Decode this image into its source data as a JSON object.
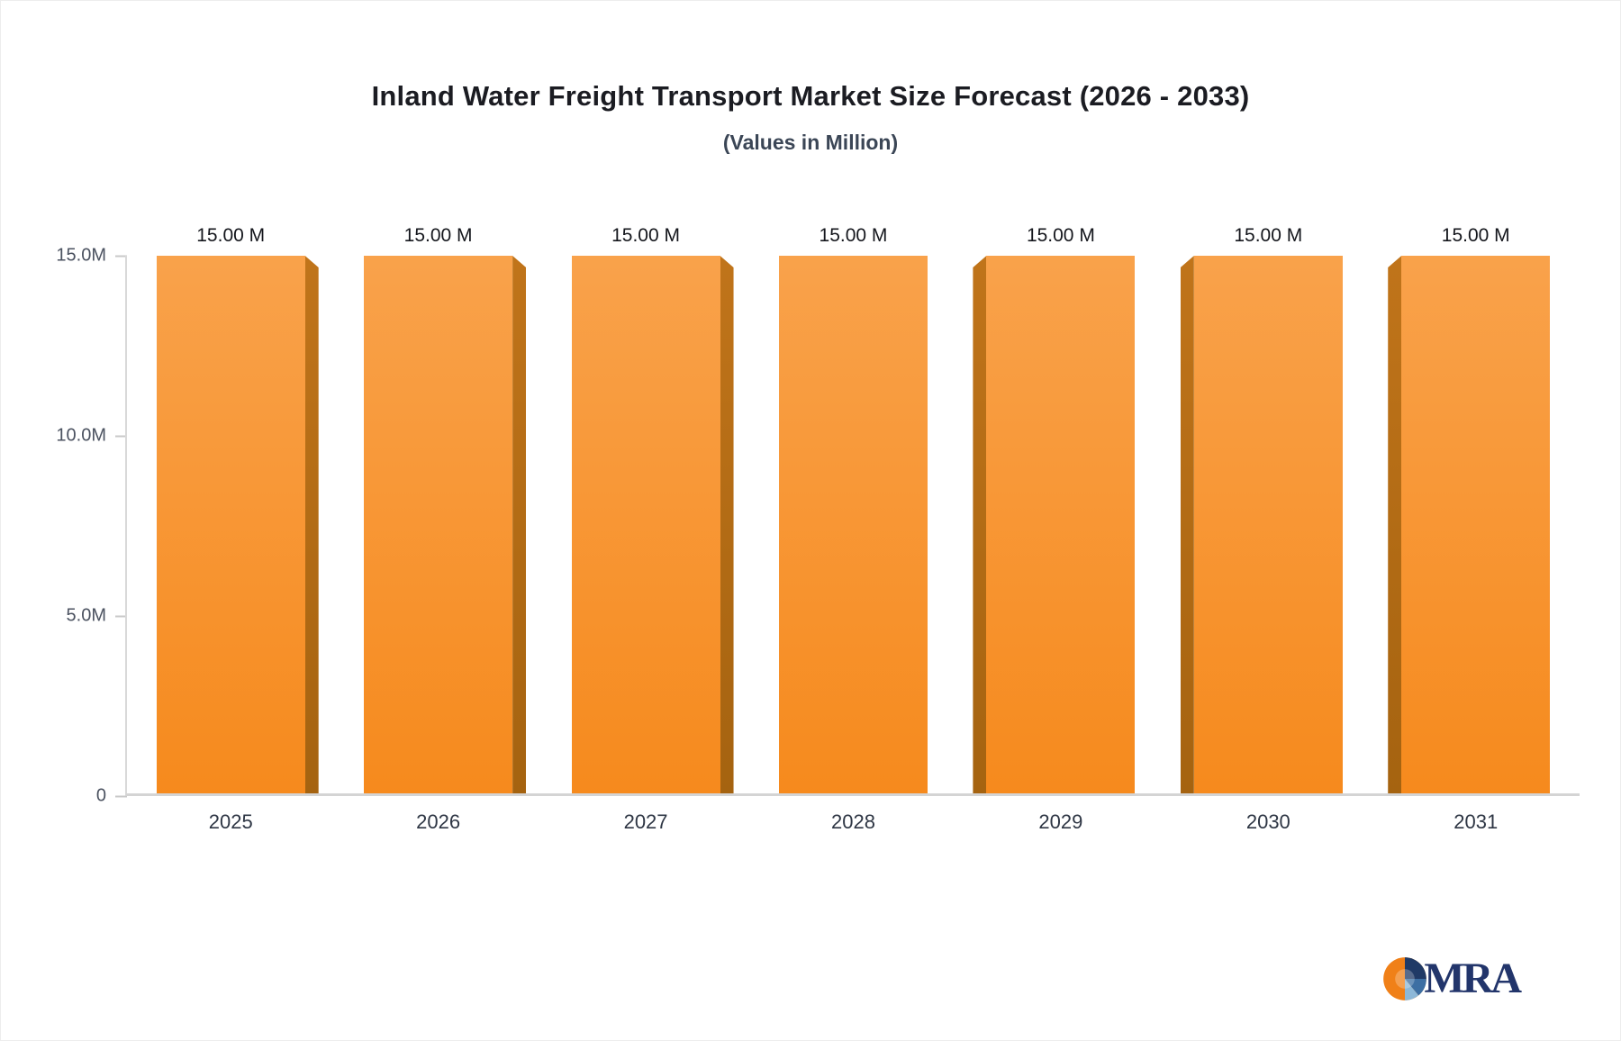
{
  "page": {
    "title": "Inland Water Freight Transport Market Size Forecast (2026 - 2033)",
    "subtitle": "(Values in Million)"
  },
  "chart_data": {
    "type": "bar",
    "title": "Inland Water Freight Transport Market Size Forecast (2026 - 2033)",
    "subtitle": "(Values in Million)",
    "categories": [
      "2025",
      "2026",
      "2027",
      "2028",
      "2029",
      "2030",
      "2031"
    ],
    "values": [
      15,
      15,
      15,
      15,
      15,
      15,
      15
    ],
    "value_labels": [
      "15.00 M",
      "15.00 M",
      "15.00 M",
      "15.00 M",
      "15.00 M",
      "15.00 M",
      "15.00 M"
    ],
    "unit": "M",
    "xlabel": "",
    "ylabel": "",
    "ylim": [
      0,
      15
    ],
    "yticks": [
      {
        "value": 15,
        "label": "15.0M"
      },
      {
        "value": 10,
        "label": "10.0M"
      },
      {
        "value": 5,
        "label": "5.0M"
      },
      {
        "value": 0,
        "label": "0"
      }
    ],
    "grid": false,
    "legend": false,
    "bar_style": {
      "face_top": "#f9a24b",
      "face_bottom": "#f68a1d",
      "side_top": "#c0741a",
      "side_bottom": "#a56310"
    }
  },
  "branding": {
    "logo_text": "MRA",
    "logo_colors": {
      "orange": "#f08018",
      "navy": "#203a66",
      "steel_blue": "#3d6fa3",
      "light_blue": "#8db8d8",
      "text_navy": "#22356b"
    }
  }
}
